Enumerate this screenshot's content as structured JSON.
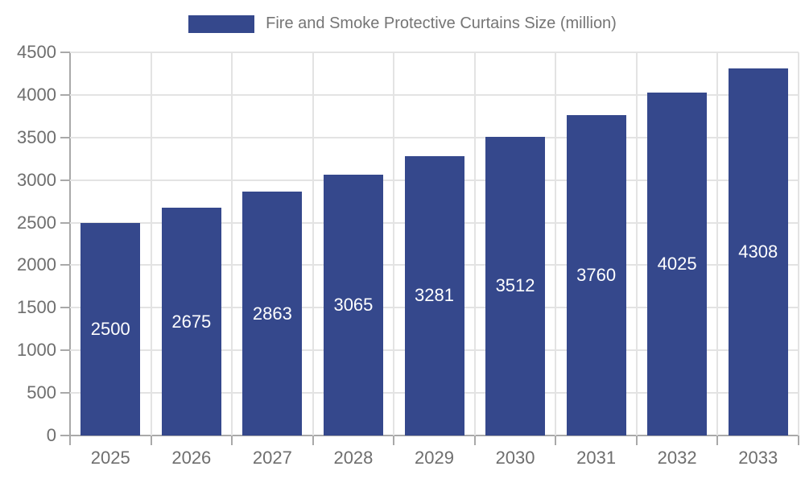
{
  "legend": {
    "label": "Fire and Smoke Protective Curtains Size (million)"
  },
  "chart_data": {
    "type": "bar",
    "title": "Fire and Smoke Protective Curtains Size (million)",
    "series_name": "Fire and Smoke Protective Curtains Size (million)",
    "categories": [
      "2025",
      "2026",
      "2027",
      "2028",
      "2029",
      "2030",
      "2031",
      "2032",
      "2033"
    ],
    "values": [
      2500,
      2675,
      2863,
      3065,
      3281,
      3512,
      3760,
      4025,
      4308
    ],
    "value_labels": [
      "2500",
      "2675",
      "2863",
      "3065",
      "3281",
      "3512",
      "3760",
      "4025",
      "4308"
    ],
    "xlabel": "",
    "ylabel": "",
    "ylim": [
      0,
      4500
    ],
    "yticks": [
      0,
      500,
      1000,
      1500,
      2000,
      2500,
      3000,
      3500,
      4000,
      4500
    ],
    "grid": true,
    "legend_position": "top-center",
    "value_label_position": "center-of-bar"
  },
  "colors": {
    "bar": "#35488C",
    "grid": "#E3E3E3",
    "axis": "#A9A9A9",
    "tick_label": "#6E6E6E",
    "legend_text": "#757575",
    "value_label": "#FFFFFF",
    "background": "#FFFFFF"
  }
}
